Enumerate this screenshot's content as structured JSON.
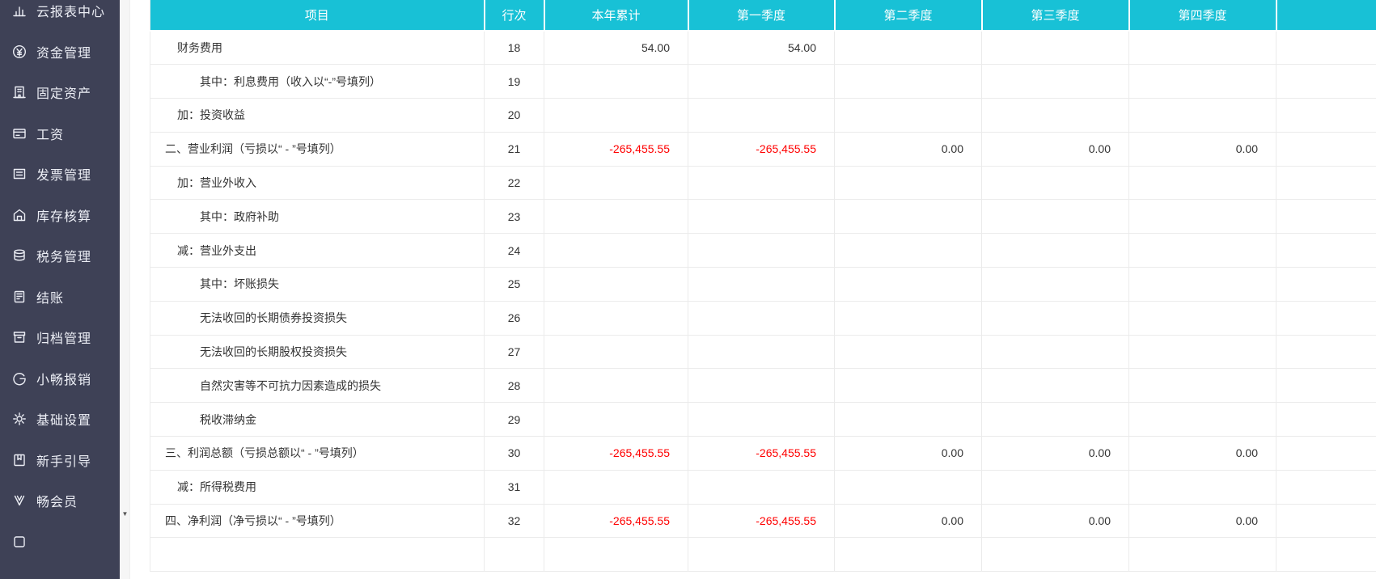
{
  "colors": {
    "sidebar_bg": "#3e4156",
    "sidebar_text": "#eceef5",
    "header_bg": "#18c1d6",
    "header_text": "#ffffff",
    "row_border": "#ebebeb",
    "text": "#333333",
    "negative": "#ff0000"
  },
  "sidebar": {
    "scroll_down_glyph": "▼",
    "items": [
      {
        "label": "云报表中心",
        "icon": "cloud-report-icon"
      },
      {
        "label": "资金管理",
        "icon": "funds-icon"
      },
      {
        "label": "固定资产",
        "icon": "fixed-assets-icon"
      },
      {
        "label": "工资",
        "icon": "salary-icon"
      },
      {
        "label": "发票管理",
        "icon": "invoice-icon"
      },
      {
        "label": "库存核算",
        "icon": "inventory-icon"
      },
      {
        "label": "税务管理",
        "icon": "tax-icon"
      },
      {
        "label": "结账",
        "icon": "settle-icon"
      },
      {
        "label": "归档管理",
        "icon": "archive-icon"
      },
      {
        "label": "小畅报销",
        "icon": "reimburse-icon"
      },
      {
        "label": "基础设置",
        "icon": "settings-icon"
      },
      {
        "label": "新手引导",
        "icon": "guide-icon"
      },
      {
        "label": "畅会员",
        "icon": "member-icon"
      },
      {
        "label": "",
        "icon": "partial-item-icon"
      }
    ]
  },
  "table": {
    "headers": [
      "项目",
      "行次",
      "本年累计",
      "第一季度",
      "第二季度",
      "第三季度",
      "第四季度"
    ],
    "rows": [
      {
        "item": "财务费用",
        "indent": 1,
        "line": "18",
        "values": [
          "54.00",
          "54.00",
          "",
          "",
          ""
        ]
      },
      {
        "item": "其中：利息费用（收入以“-”号填列）",
        "indent": 2,
        "line": "19",
        "values": [
          "",
          "",
          "",
          "",
          ""
        ]
      },
      {
        "item": "加：投资收益",
        "indent": 1,
        "line": "20",
        "values": [
          "",
          "",
          "",
          "",
          ""
        ]
      },
      {
        "item": "二、营业利润（亏损以“ - ”号填列）",
        "indent": 0,
        "line": "21",
        "values": [
          "-265,455.55",
          "-265,455.55",
          "0.00",
          "0.00",
          "0.00"
        ]
      },
      {
        "item": "加：营业外收入",
        "indent": 1,
        "line": "22",
        "values": [
          "",
          "",
          "",
          "",
          ""
        ]
      },
      {
        "item": "其中：政府补助",
        "indent": 2,
        "line": "23",
        "values": [
          "",
          "",
          "",
          "",
          ""
        ]
      },
      {
        "item": "减：营业外支出",
        "indent": 1,
        "line": "24",
        "values": [
          "",
          "",
          "",
          "",
          ""
        ]
      },
      {
        "item": "其中：坏账损失",
        "indent": 2,
        "line": "25",
        "values": [
          "",
          "",
          "",
          "",
          ""
        ]
      },
      {
        "item": "无法收回的长期债券投资损失",
        "indent": 2,
        "line": "26",
        "values": [
          "",
          "",
          "",
          "",
          ""
        ]
      },
      {
        "item": "无法收回的长期股权投资损失",
        "indent": 2,
        "line": "27",
        "values": [
          "",
          "",
          "",
          "",
          ""
        ]
      },
      {
        "item": "自然灾害等不可抗力因素造成的损失",
        "indent": 2,
        "line": "28",
        "values": [
          "",
          "",
          "",
          "",
          ""
        ]
      },
      {
        "item": "税收滞纳金",
        "indent": 2,
        "line": "29",
        "values": [
          "",
          "",
          "",
          "",
          ""
        ]
      },
      {
        "item": "三、利润总额（亏损总额以“ - ”号填列）",
        "indent": 0,
        "line": "30",
        "values": [
          "-265,455.55",
          "-265,455.55",
          "0.00",
          "0.00",
          "0.00"
        ]
      },
      {
        "item": "减：所得税费用",
        "indent": 1,
        "line": "31",
        "values": [
          "",
          "",
          "",
          "",
          ""
        ]
      },
      {
        "item": "四、净利润（净亏损以“ - ”号填列）",
        "indent": 0,
        "line": "32",
        "values": [
          "-265,455.55",
          "-265,455.55",
          "0.00",
          "0.00",
          "0.00"
        ]
      },
      {
        "item": "",
        "indent": 1,
        "line": "",
        "values": [
          "",
          "",
          "",
          "",
          ""
        ]
      }
    ]
  }
}
